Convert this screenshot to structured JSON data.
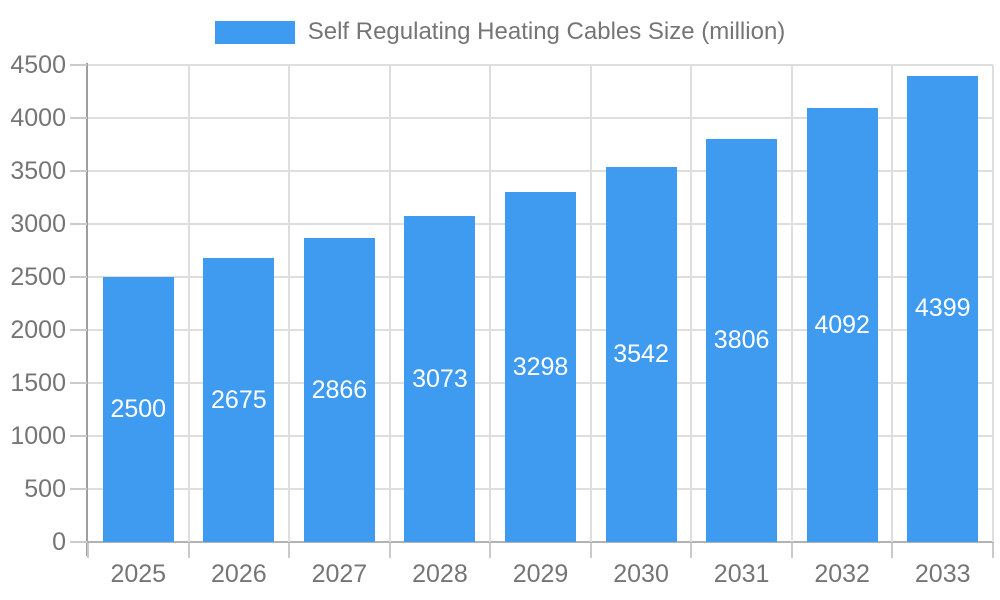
{
  "legend": {
    "label": "Self Regulating Heating Cables Size (million)"
  },
  "colors": {
    "bar": "#3E9BF0",
    "bar_label": "#FFFFFF",
    "axis_text": "#757575",
    "grid": "#DEDEDE",
    "tick": "#CACACA",
    "y_axis_line": "#9E9E9E",
    "x_axis_line": "#B3B3B3",
    "background": "#FFFFFF"
  },
  "chart_data": {
    "type": "bar",
    "title": "Self Regulating Heating Cables Size (million)",
    "categories": [
      "2025",
      "2026",
      "2027",
      "2028",
      "2029",
      "2030",
      "2031",
      "2032",
      "2033"
    ],
    "values": [
      2500,
      2675,
      2866,
      3073,
      3298,
      3542,
      3806,
      4092,
      4399
    ],
    "series_name": "Self Regulating Heating Cables Size (million)",
    "xlabel": "",
    "ylabel": "",
    "ylim": [
      0,
      4500
    ],
    "ytick_step": 500,
    "ytick_labels": [
      "0",
      "500",
      "1000",
      "1500",
      "2000",
      "2500",
      "3000",
      "3500",
      "4000",
      "4500"
    ],
    "grid": true,
    "legend_position": "top",
    "value_labels": "inside-center-white"
  }
}
